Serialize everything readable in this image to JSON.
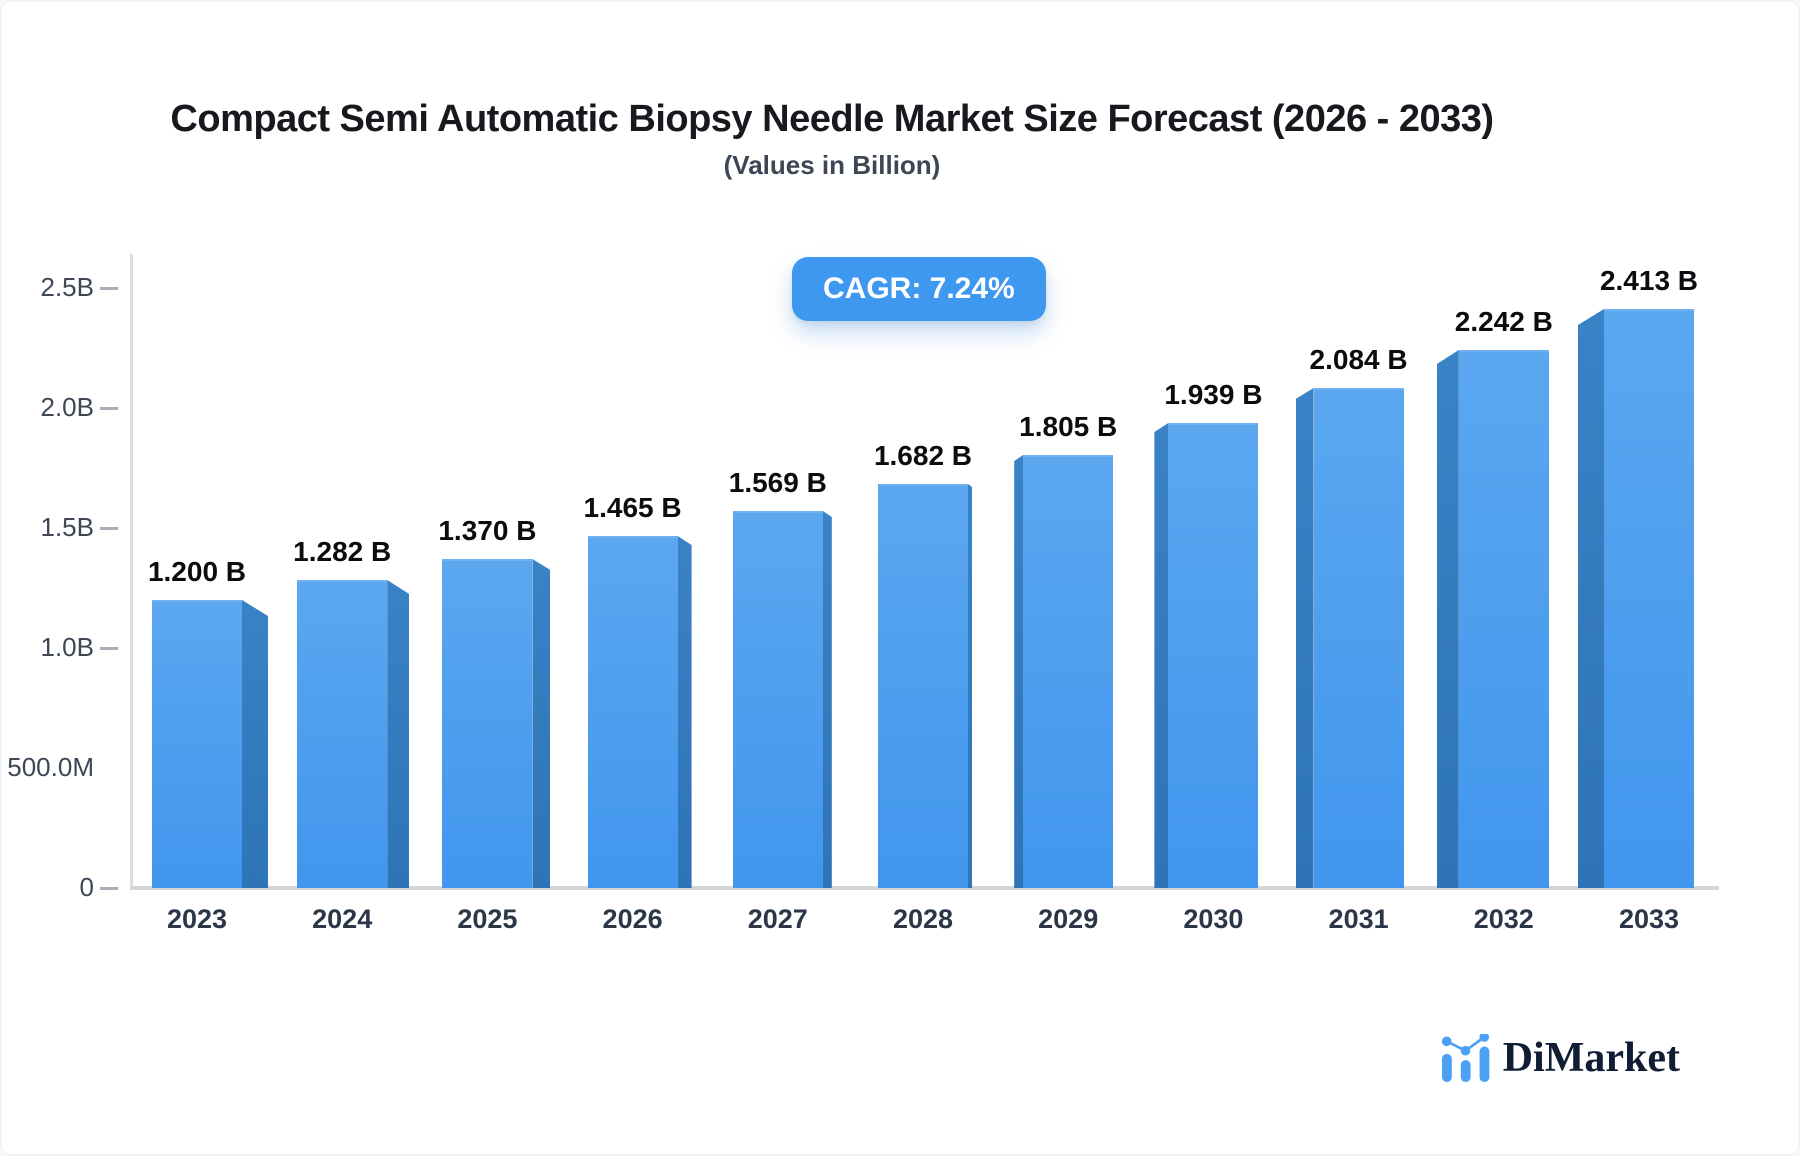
{
  "header": {
    "title": "Compact Semi Automatic Biopsy Needle Market Size Forecast (2026 - 2033)",
    "subtitle": "(Values in Billion)",
    "badge": "CAGR: 7.24%"
  },
  "chart_data": {
    "type": "bar",
    "title": "Compact Semi Automatic Biopsy Needle Market Size Forecast (2026 - 2033)",
    "subtitle": "(Values in Billion)",
    "annotation": "CAGR: 7.24%",
    "categories": [
      "2023",
      "2024",
      "2025",
      "2026",
      "2027",
      "2028",
      "2029",
      "2030",
      "2031",
      "2032",
      "2033"
    ],
    "values": [
      1.2,
      1.282,
      1.37,
      1.465,
      1.569,
      1.682,
      1.805,
      1.939,
      2.084,
      2.242,
      2.413
    ],
    "value_labels": [
      "1.200 B",
      "1.282 B",
      "1.370 B",
      "1.465 B",
      "1.569 B",
      "1.682 B",
      "1.805 B",
      "1.939 B",
      "2.084 B",
      "2.242 B",
      "2.413 B"
    ],
    "unit": "Billion",
    "xlabel": "",
    "ylabel": "",
    "ylim": [
      0,
      2.5
    ],
    "grid": false,
    "legend": "none",
    "y_ticks": [
      {
        "label": "2.5B",
        "value": 2.5,
        "dash": true
      },
      {
        "label": "2.0B",
        "value": 2.0,
        "dash": true
      },
      {
        "label": "1.5B",
        "value": 1.5,
        "dash": true
      },
      {
        "label": "1.0B",
        "value": 1.0,
        "dash": true
      },
      {
        "label": "500.0M",
        "value": 0.5,
        "dash": false
      },
      {
        "label": "0",
        "value": 0.0,
        "dash": true
      }
    ]
  },
  "colors": {
    "bar_face_top": "#5BA7F0",
    "bar_face_bottom": "#4196ED",
    "bar_side_top": "#3A82C6",
    "bar_side_bottom": "#2E74B6",
    "badge_bg": "#3F98EF",
    "axis_line": "#d6dade",
    "logo_blue": "#4BA1F6"
  },
  "branding": {
    "name": "DiMarket",
    "icon": "bar-chart-logo-icon"
  }
}
